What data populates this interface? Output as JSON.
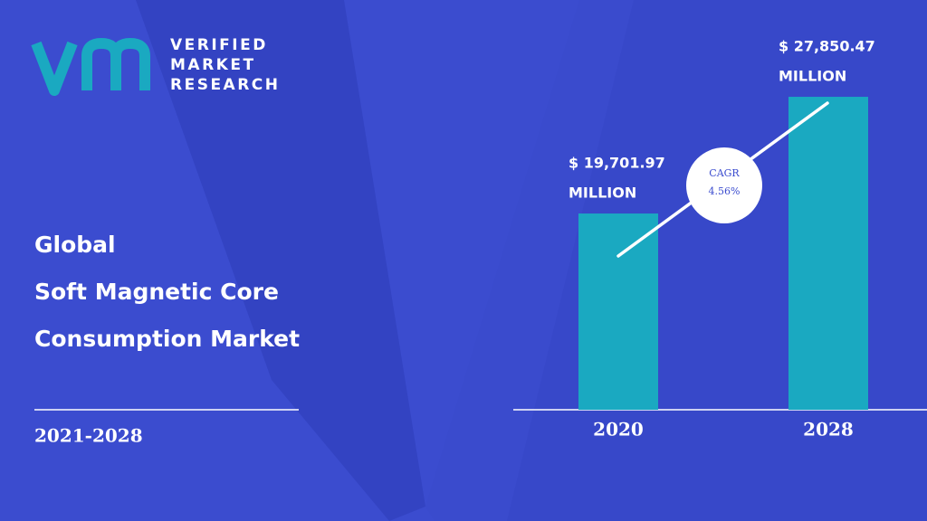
{
  "brand": [
    "VERIFIED",
    "MARKET",
    "RESEARCH"
  ],
  "title_lines": [
    "Global",
    "Soft Magnetic Core",
    "Consumption Market"
  ],
  "period": "2021-2028",
  "chart_data": {
    "type": "bar",
    "categories": [
      "2020",
      "2028"
    ],
    "values": [
      19701.97,
      27850.47
    ],
    "value_labels": [
      "$ 19,701.97",
      "$ 27,850.47"
    ],
    "value_unit": "MILLION",
    "color": "#1aa9c1",
    "ylim": [
      6000,
      30000
    ],
    "annotations": {
      "cagr_label": "CAGR",
      "cagr_value": "4.56%"
    }
  }
}
